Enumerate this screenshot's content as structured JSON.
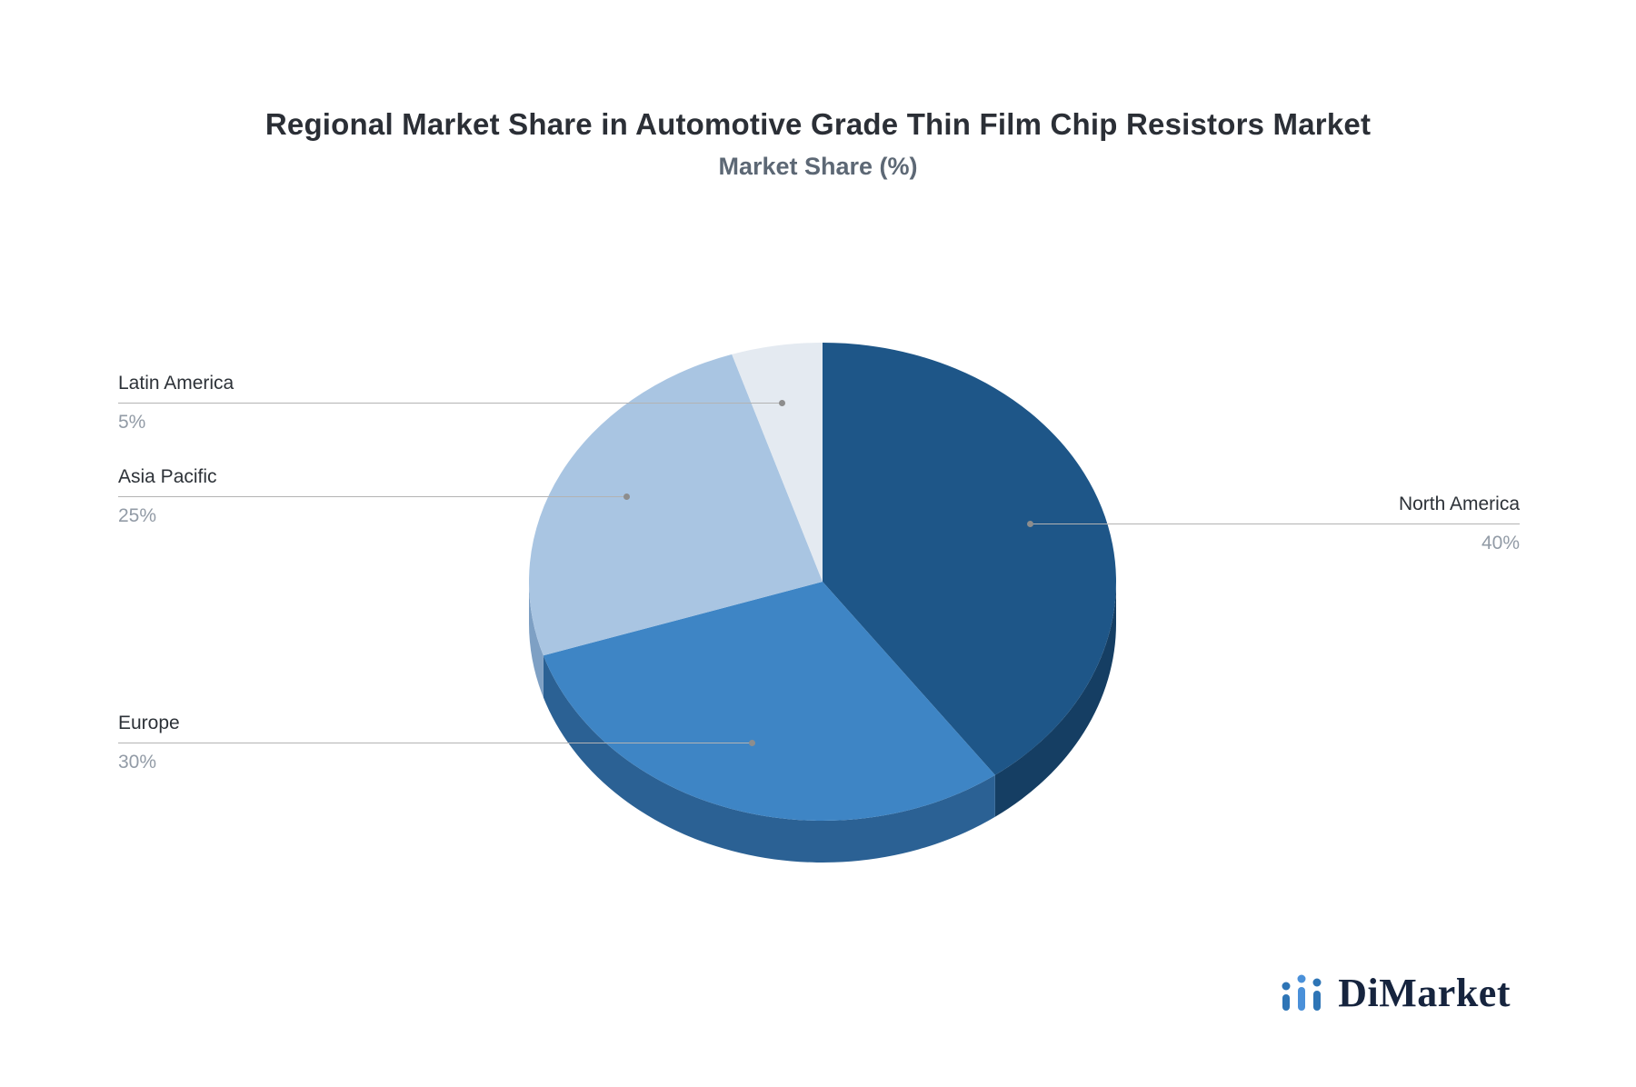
{
  "chart_data": {
    "type": "pie",
    "style": "3d-pie",
    "title": "Regional Market Share in Automotive Grade Thin Film Chip Resistors Market",
    "subtitle": "Market Share (%)",
    "unit": "%",
    "labels": [
      "North America",
      "Europe",
      "Asia Pacific",
      "Latin America"
    ],
    "values": [
      40,
      30,
      25,
      5
    ],
    "display_values": [
      "40%",
      "30%",
      "25%",
      "5%"
    ],
    "colors": [
      "#1E5688",
      "#3E85C5",
      "#A9C5E2",
      "#E4EAF1"
    ],
    "side_colors": [
      "#153E63",
      "#2B6194",
      "#7EA0C4",
      "#BFCBDA"
    ],
    "legend_position": "callout-labels",
    "rotation": "clockwise-from-top"
  },
  "branding": {
    "logo_text": "DiMarket"
  }
}
